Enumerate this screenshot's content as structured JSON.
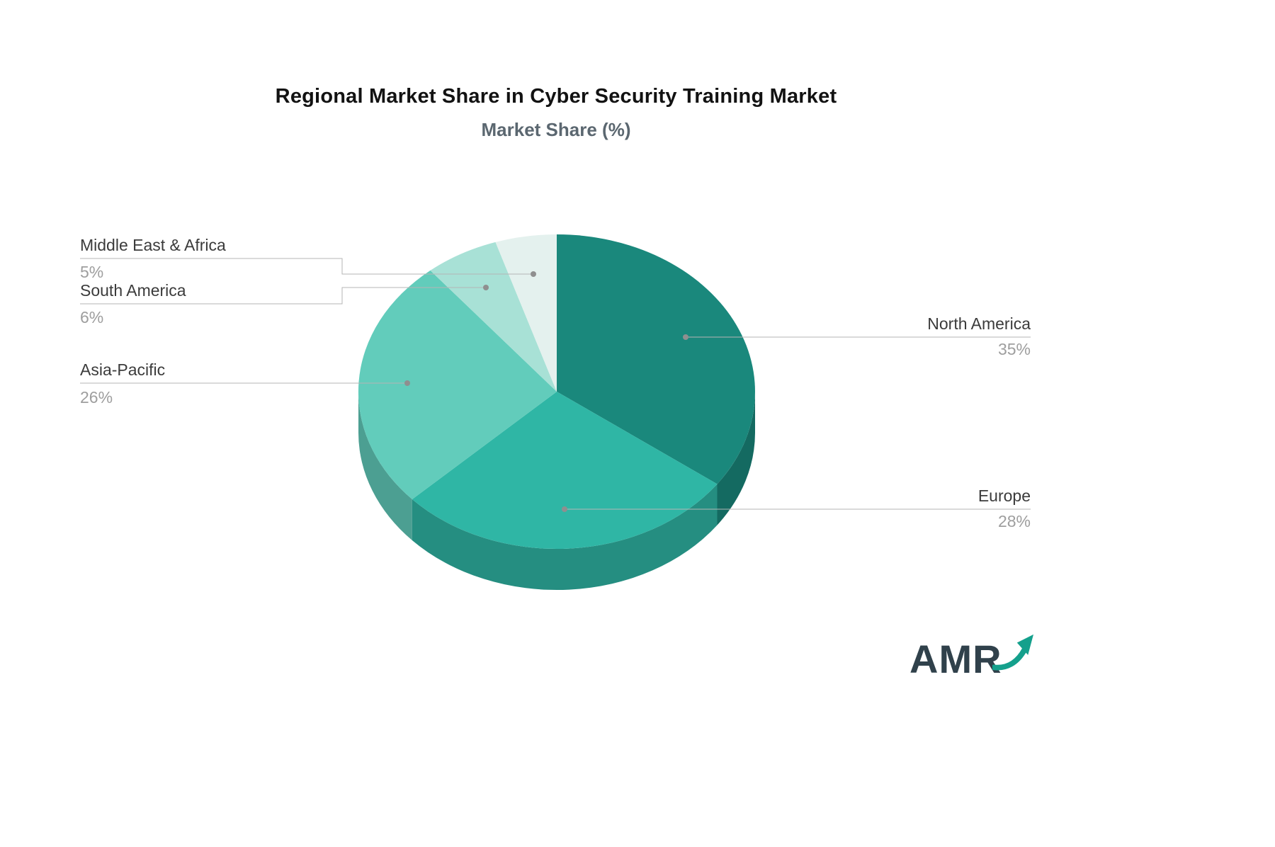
{
  "page": {
    "background": "#ffffff"
  },
  "chart_data": {
    "type": "pie",
    "title": "Regional Market Share in Cyber Security Training Market",
    "subtitle": "Market Share (%)",
    "unit": "%",
    "start_angle_deg": -90,
    "direction": "clockwise",
    "legend_position": "none",
    "style": {
      "effect": "3d",
      "name_color": "#3b3b3b",
      "value_color": "#9e9e9e",
      "leader_line_color": "#b5b5b5"
    },
    "slices": [
      {
        "label": "North America",
        "value": 35,
        "value_label": "35%",
        "color": "#1a887c"
      },
      {
        "label": "Europe",
        "value": 28,
        "value_label": "28%",
        "color": "#2fb6a5"
      },
      {
        "label": "Asia-Pacific",
        "value": 26,
        "value_label": "26%",
        "color": "#62ccbb"
      },
      {
        "label": "South America",
        "value": 6,
        "value_label": "6%",
        "color": "#a8e1d6"
      },
      {
        "label": "Middle East & Africa",
        "value": 5,
        "value_label": "5%",
        "color": "#e4f1ee"
      }
    ]
  },
  "logo": {
    "text": "AMR",
    "color": "#30414b",
    "arrow_color": "#14a08c"
  }
}
